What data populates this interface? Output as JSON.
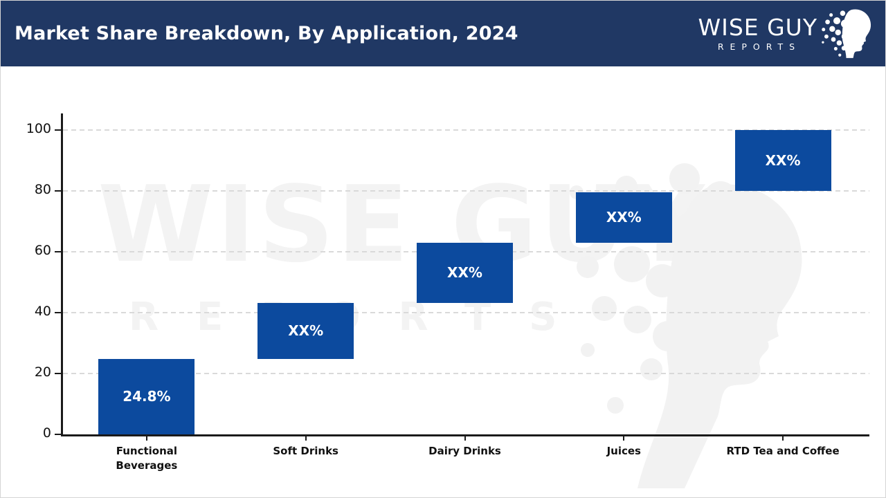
{
  "header": {
    "title": "Market Share Breakdown, By Application, 2024",
    "logo": {
      "line1": "WISE GUY",
      "line2": "REPORTS"
    }
  },
  "watermark": {
    "line1": "WISE GUY",
    "line2": "REPORTS"
  },
  "chart_data": {
    "type": "bar",
    "subtype": "waterfall",
    "title": "Market Share Breakdown, By Application, 2024",
    "xlabel": "",
    "ylabel": "",
    "ylim": [
      0,
      106
    ],
    "y_ticks": [
      0,
      20,
      40,
      60,
      80,
      100
    ],
    "grid": "horizontal-dashed",
    "legend": "none",
    "categories": [
      "Functional\nBeverages",
      "Soft Drinks",
      "Dairy Drinks",
      "Juices",
      "RTD Tea and Coffee"
    ],
    "segments": [
      {
        "category": "Functional Beverages",
        "start": 0,
        "end": 24.8,
        "label": "24.8%"
      },
      {
        "category": "Soft Drinks",
        "start": 24.8,
        "end": 43.2,
        "label": "XX%"
      },
      {
        "category": "Dairy Drinks",
        "start": 43.2,
        "end": 63.0,
        "label": "XX%"
      },
      {
        "category": "Juices",
        "start": 63.0,
        "end": 79.5,
        "label": "XX%"
      },
      {
        "category": "RTD Tea and Coffee",
        "start": 80.0,
        "end": 100.0,
        "label": "XX%"
      }
    ]
  },
  "colors": {
    "header_bg": "#203864",
    "bar": "#0c4a9e",
    "grid": "#d9d9d9",
    "axis": "#1a1a1a",
    "bar_label": "#ffffff",
    "watermark": "#f2f2f2"
  }
}
